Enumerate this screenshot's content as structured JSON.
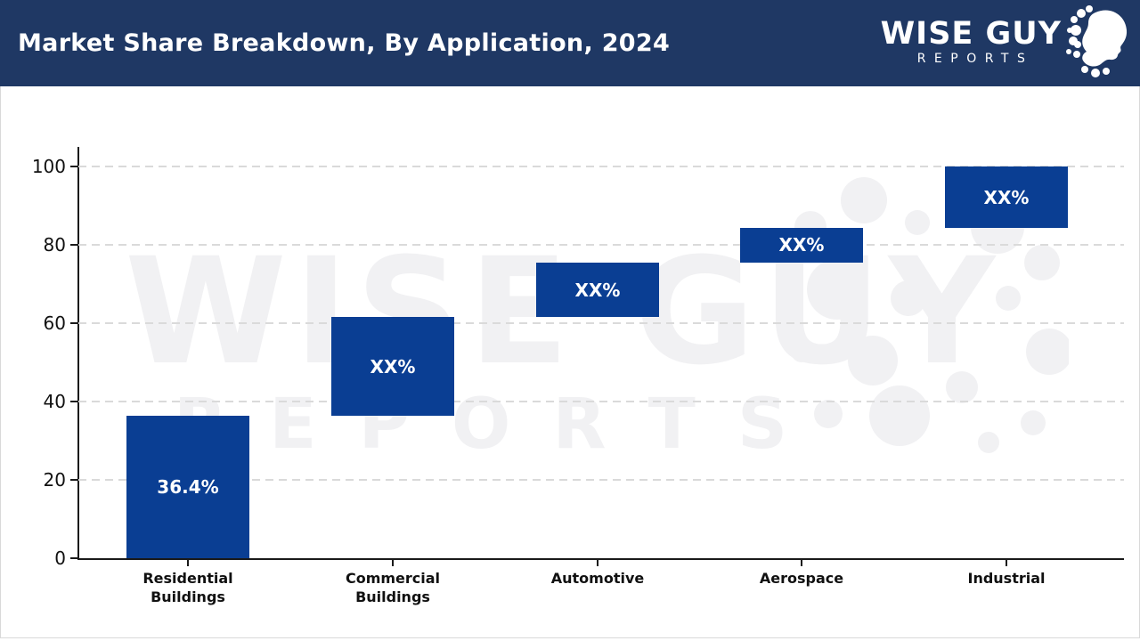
{
  "header": {
    "title": "Market Share Breakdown, By Application, 2024",
    "brand_line1": "WISE GUY",
    "brand_line2": "REPORTS"
  },
  "watermark": {
    "line1": "WISE GUY",
    "line2": "R E P O R T S"
  },
  "chart_data": {
    "type": "bar",
    "subtype": "waterfall",
    "title": "Market Share Breakdown, By Application, 2024",
    "categories": [
      "Residential Buildings",
      "Commercial Buildings",
      "Automotive",
      "Aerospace",
      "Industrial"
    ],
    "segments": [
      {
        "category": "Residential Buildings",
        "label": "36.4%",
        "start": 0,
        "end": 36.4
      },
      {
        "category": "Commercial Buildings",
        "label": "XX%",
        "start": 36.4,
        "end": 61.5
      },
      {
        "category": "Automotive",
        "label": "XX%",
        "start": 61.5,
        "end": 75.5
      },
      {
        "category": "Aerospace",
        "label": "XX%",
        "start": 75.5,
        "end": 84.3
      },
      {
        "category": "Industrial",
        "label": "XX%",
        "start": 84.3,
        "end": 100
      }
    ],
    "yticks": [
      0,
      20,
      40,
      60,
      80,
      100
    ],
    "ylim": [
      0,
      105
    ],
    "xlabel": "",
    "ylabel": "",
    "grid": "dashed-horizontal",
    "legend": "none",
    "bar_color": "#0a3e93",
    "bar_label_color": "#ffffff",
    "header_color": "#1f3864",
    "grid_color": "#dadada",
    "axis_color": "#1a1a1a"
  }
}
